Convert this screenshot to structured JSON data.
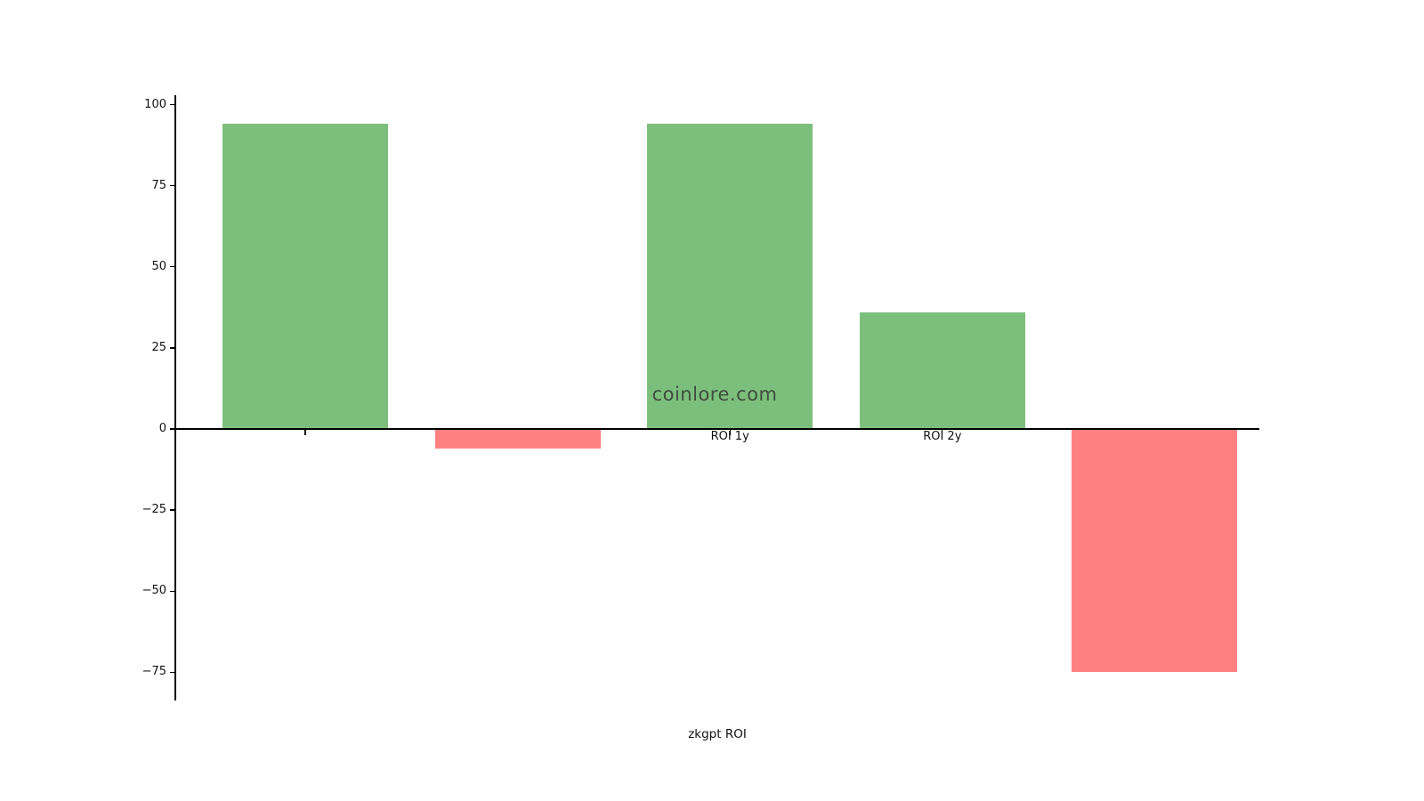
{
  "page": {
    "background": "#ffffff"
  },
  "watermark": {
    "text": "coinlore.com",
    "color": "#373e37"
  },
  "chart_data": {
    "type": "bar",
    "title": "zkgpt ROI",
    "categories": [
      "",
      "",
      "ROI 1y",
      "ROI 2y",
      ""
    ],
    "values": [
      94,
      -6,
      94,
      36,
      -75
    ],
    "series": [
      {
        "name": "zkgpt ROI %",
        "values": [
          94,
          -6,
          94,
          36,
          -75
        ]
      }
    ],
    "xticks": [
      {
        "index": 0,
        "label": ""
      },
      {
        "index": 2,
        "label": "ROI 1y"
      },
      {
        "index": 3,
        "label": "ROI 2y"
      }
    ],
    "yticks": [
      {
        "value": 100,
        "label": "100"
      },
      {
        "value": 75,
        "label": "75"
      },
      {
        "value": 50,
        "label": "50"
      },
      {
        "value": 25,
        "label": "25"
      },
      {
        "value": 0,
        "label": "0"
      },
      {
        "value": -25,
        "label": "−25"
      },
      {
        "value": -50,
        "label": "−50"
      },
      {
        "value": -75,
        "label": "−75"
      }
    ],
    "ylim": [
      -84,
      103
    ],
    "grid": false,
    "legend": false,
    "colors": {
      "positive": "#7cbf7c",
      "negative": "#ff8080",
      "axis": "#000000",
      "tick_label": "#111111"
    }
  }
}
